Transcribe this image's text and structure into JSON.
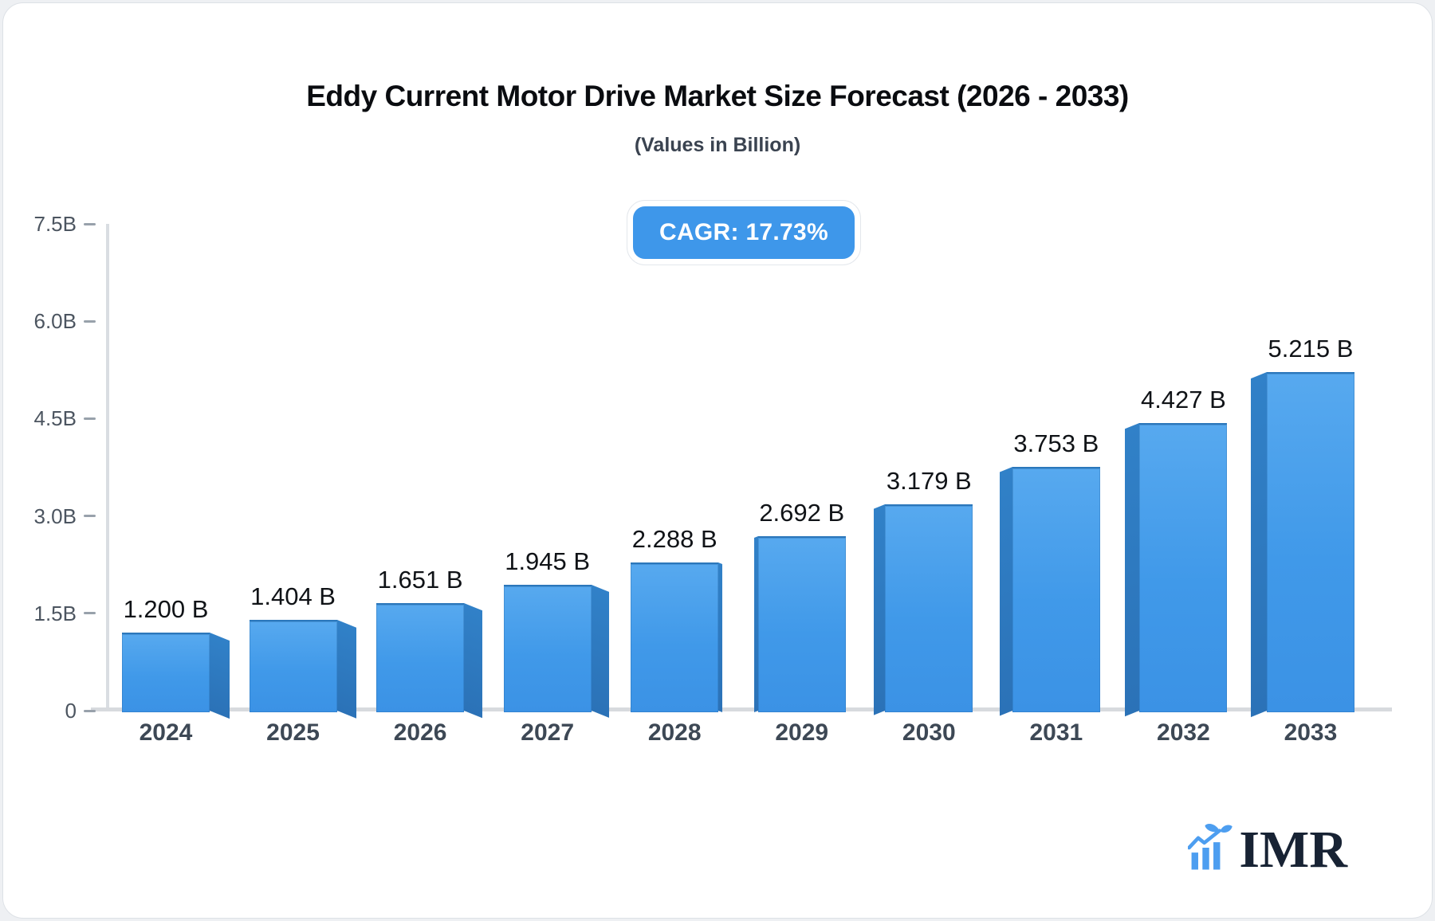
{
  "header": {
    "title": "Eddy Current Motor Drive Market Size Forecast (2026 - 2033)",
    "subtitle": "(Values in Billion)",
    "cagr_label": "CAGR: 17.73%"
  },
  "chart_data": {
    "type": "bar",
    "title": "Eddy Current Motor Drive Market Size Forecast (2026 - 2033)",
    "subtitle": "(Values in Billion)",
    "cagr_pct": 17.73,
    "unit": "Billion",
    "categories": [
      "2024",
      "2025",
      "2026",
      "2027",
      "2028",
      "2029",
      "2030",
      "2031",
      "2032",
      "2033"
    ],
    "values": [
      1.2,
      1.404,
      1.651,
      1.945,
      2.288,
      2.692,
      3.179,
      3.753,
      4.427,
      5.215
    ],
    "value_labels": [
      "1.200 B",
      "1.404 B",
      "1.651 B",
      "1.945 B",
      "2.288 B",
      "2.692 B",
      "3.179 B",
      "3.753 B",
      "4.427 B",
      "5.215 B"
    ],
    "xlabel": "",
    "ylabel": "",
    "ylim": [
      0,
      7.5
    ],
    "yticks": [
      {
        "v": 0,
        "label": "0"
      },
      {
        "v": 1.5,
        "label": "1.5B"
      },
      {
        "v": 3.0,
        "label": "3.0B"
      },
      {
        "v": 4.5,
        "label": "4.5B"
      },
      {
        "v": 6.0,
        "label": "6.0B"
      },
      {
        "v": 7.5,
        "label": "7.5B"
      }
    ],
    "grid": false,
    "legend": "none",
    "bar_color": "#3f97e8",
    "bar_side_color": "#2e78bd",
    "axis_color": "#d9dde2"
  },
  "branding": {
    "logo_text": "IMR",
    "logo_icon": "bar-chart-with-leaves-icon",
    "logo_color": "#4d9ef0"
  }
}
